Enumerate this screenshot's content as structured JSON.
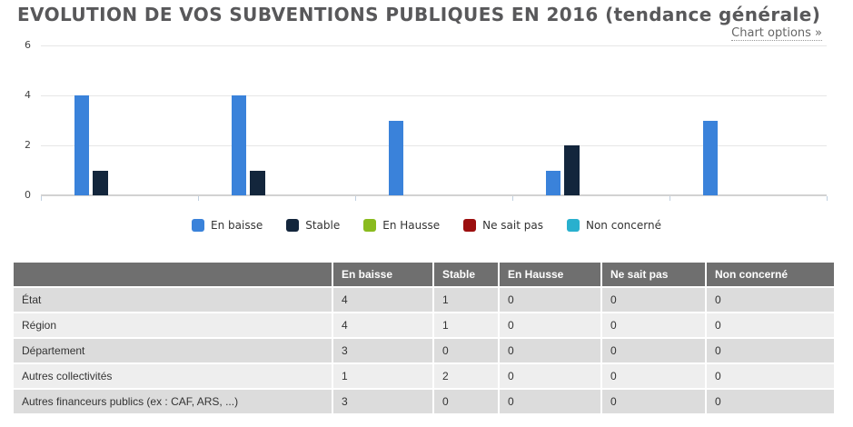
{
  "header": {
    "chart_options_label": "Chart options »"
  },
  "chart_data": {
    "type": "bar",
    "title": "EVOLUTION DE VOS SUBVENTIONS PUBLIQUES EN 2016 (tendance générale)",
    "xlabel": "",
    "ylabel": "",
    "categories": [
      "État",
      "Région",
      "Département",
      "Autres collectivités",
      "Autres financeurs publics (ex : CAF, ARS, ...)"
    ],
    "series": [
      {
        "name": "En baisse",
        "color": "#3a82da",
        "values": [
          4,
          4,
          3,
          1,
          3
        ]
      },
      {
        "name": "Stable",
        "color": "#13263c",
        "values": [
          1,
          1,
          0,
          2,
          0
        ]
      },
      {
        "name": "En Hausse",
        "color": "#8abb1e",
        "values": [
          0,
          0,
          0,
          0,
          0
        ]
      },
      {
        "name": "Ne sait pas",
        "color": "#9c0f0f",
        "values": [
          0,
          0,
          0,
          0,
          0
        ]
      },
      {
        "name": "Non concerné",
        "color": "#29b0ce",
        "values": [
          0,
          0,
          0,
          0,
          0
        ]
      }
    ],
    "ylim": [
      0,
      6
    ],
    "yticks": [
      0,
      2,
      4,
      6
    ],
    "grid": true,
    "legend_position": "bottom",
    "legend_entries": [
      "En baisse",
      "Stable",
      "En Hausse",
      "Ne sait pas",
      "Non concerné"
    ]
  },
  "table": {
    "headers": [
      "",
      "En baisse",
      "Stable",
      "En Hausse",
      "Ne sait pas",
      "Non concerné"
    ],
    "rows": [
      {
        "label": "État",
        "values": [
          "4",
          "1",
          "0",
          "0",
          "0"
        ]
      },
      {
        "label": "Région",
        "values": [
          "4",
          "1",
          "0",
          "0",
          "0"
        ]
      },
      {
        "label": "Département",
        "values": [
          "3",
          "0",
          "0",
          "0",
          "0"
        ]
      },
      {
        "label": "Autres collectivités",
        "values": [
          "1",
          "2",
          "0",
          "0",
          "0"
        ]
      },
      {
        "label": "Autres financeurs publics (ex : CAF, ARS, ...)",
        "values": [
          "3",
          "0",
          "0",
          "0",
          "0"
        ]
      }
    ]
  }
}
